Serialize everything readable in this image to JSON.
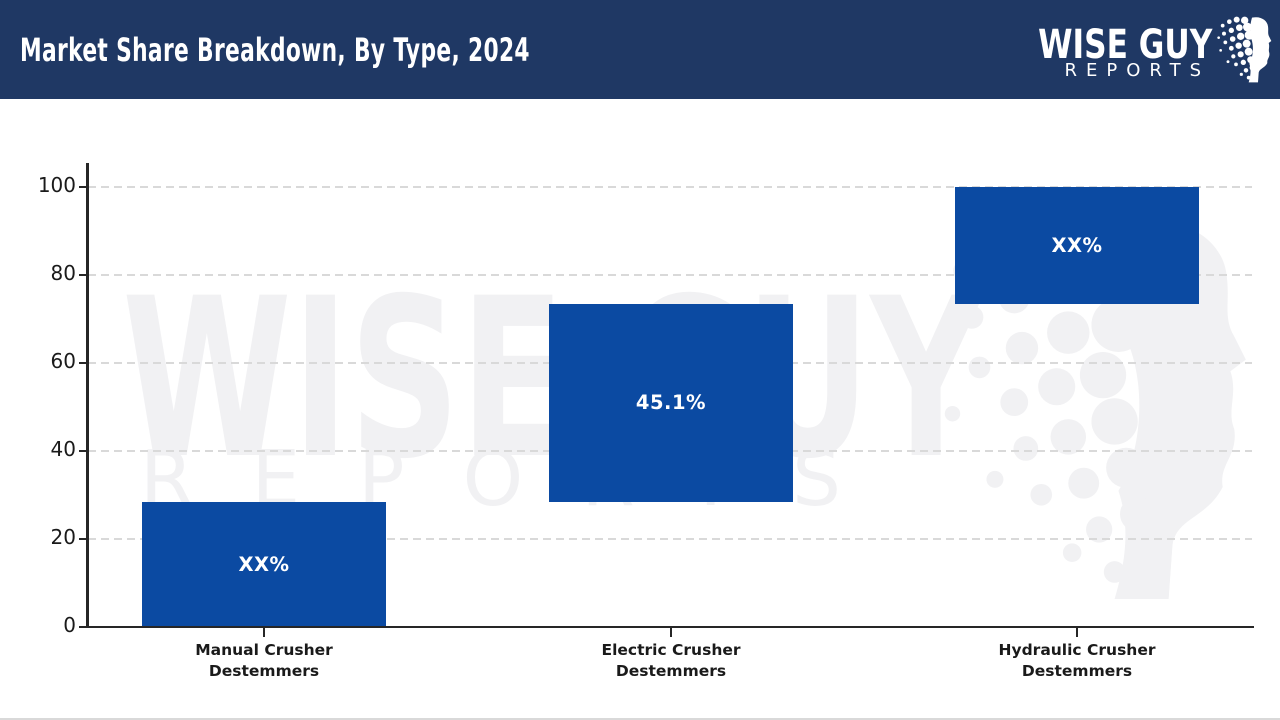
{
  "header": {
    "title": "Market Share Breakdown, By Type, 2024",
    "logo": {
      "brand": "WISE GUY",
      "sub": "REPORTS"
    }
  },
  "watermark": {
    "brand": "WISE GUY",
    "sub": "REPORTS"
  },
  "chart_data": {
    "type": "bar",
    "subtype": "waterfall-stacked-segments",
    "title": "Market Share Breakdown, By Type, 2024",
    "categories": [
      "Manual Crusher Destemmers",
      "Electric Crusher Destemmers",
      "Hydraulic Crusher Destemmers"
    ],
    "bars": [
      {
        "cat_line1": "Manual Crusher",
        "cat_line2": "Destemmers",
        "start": 0,
        "end": 28.4,
        "value_label": "XX%",
        "label": "XX%"
      },
      {
        "cat_line1": "Electric Crusher",
        "cat_line2": "Destemmers",
        "start": 28.4,
        "end": 73.5,
        "value_label": "45.1%",
        "label": "45.1%"
      },
      {
        "cat_line1": "Hydraulic Crusher",
        "cat_line2": "Destemmers",
        "start": 73.5,
        "end": 100,
        "value_label": "XX%",
        "label": "XX%"
      }
    ],
    "ylim": [
      0,
      100
    ],
    "yticks": [
      0,
      20,
      40,
      60,
      80,
      100
    ],
    "grid": "horizontal-dashed",
    "legend": "none",
    "colors": {
      "bar": "#0b4aa2",
      "bar_label": "#ffffff",
      "header_bg": "#1f3864",
      "grid": "#d9d9d9",
      "axis": "#262626",
      "tick_text": "#1a1a1a",
      "watermark": "#f1f1f3"
    }
  }
}
